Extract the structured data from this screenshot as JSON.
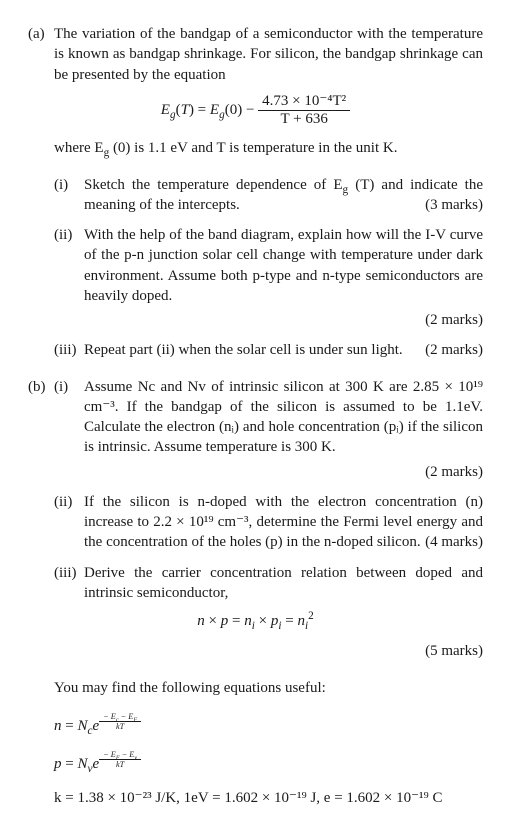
{
  "a": {
    "label": "(a)",
    "intro": "The variation of the bandgap of a semiconductor with the temperature is known as bandgap shrinkage. For silicon, the bandgap shrinkage can be presented by the equation",
    "eq_lhs": "E_g(T) = E_g(0) −",
    "eq_num": "4.73 × 10⁻⁴T²",
    "eq_den": "T + 636",
    "where": "where E",
    "where_sub": "g",
    "where_tail": " (0) is 1.1 eV and T is temperature in the unit K.",
    "i": {
      "label": "(i)",
      "text_a": "Sketch the temperature dependence of E",
      "text_sub": "g",
      "text_b": " (T) and indicate the meaning of the intercepts.",
      "marks": "(3 marks)"
    },
    "ii": {
      "label": "(ii)",
      "text": "With the help of the band diagram, explain how will the I-V curve of the p-n junction solar cell change with temperature under dark environment. Assume both p-type and n-type semiconductors are heavily doped.",
      "marks": "(2 marks)"
    },
    "iii": {
      "label": "(iii)",
      "text": "Repeat part (ii) when the solar cell is under sun light.",
      "marks": "(2 marks)"
    }
  },
  "b": {
    "label": "(b)",
    "i": {
      "label": "(i)",
      "text": "Assume Nc and Nv of intrinsic silicon at 300 K are 2.85 × 10¹⁹ cm⁻³. If the bandgap of the silicon is assumed to be 1.1eV. Calculate the electron (nᵢ) and hole concentration (pᵢ) if the silicon is intrinsic. Assume temperature is 300 K.",
      "marks": "(2 marks)"
    },
    "ii": {
      "label": "(ii)",
      "text": "If the silicon is n-doped with the electron concentration (n) increase to 2.2 × 10¹⁹ cm⁻³, determine the Fermi level energy and the concentration of the holes (p) in the n-doped silicon.",
      "marks": "(4 marks)"
    },
    "iii": {
      "label": "(iii)",
      "text": "Derive the carrier concentration relation between doped and intrinsic semiconductor,",
      "eq": "n × p = nᵢ × pᵢ = nᵢ²",
      "marks": "(5 marks)"
    }
  },
  "useful": {
    "intro": "You may find the following equations useful:",
    "eq1_l": "n = N",
    "eq1_sub": "c",
    "eq1_e": "e",
    "eq1_exp": "− (E_c − E_F) / kT",
    "eq2_l": "p = N",
    "eq2_sub": "v",
    "eq2_e": "e",
    "eq2_exp": "− (E_F − E_v) / kT",
    "consts": "k = 1.38 × 10⁻²³ J/K, 1eV = 1.602 × 10⁻¹⁹ J, e  = 1.602 × 10⁻¹⁹ C"
  }
}
